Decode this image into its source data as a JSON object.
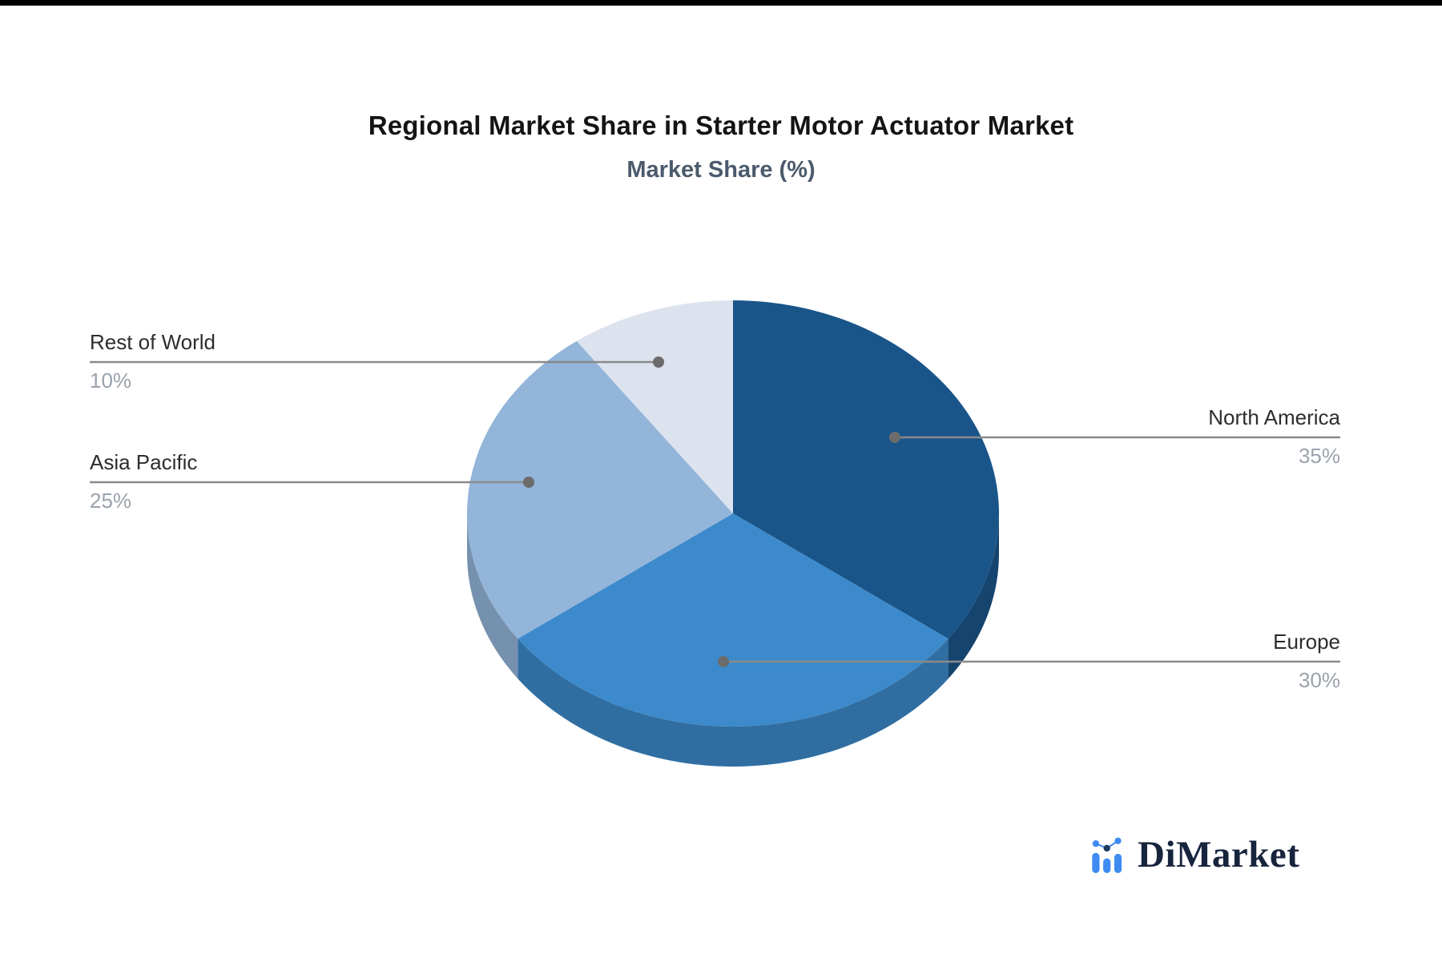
{
  "chart_data": {
    "type": "pie",
    "style": "3d",
    "title": "Regional Market Share in Starter Motor Actuator Market",
    "subtitle": "Market Share (%)",
    "start_angle_deg": 0,
    "direction": "clockwise",
    "legend_position": "callout-labels",
    "slices": [
      {
        "label": "North America",
        "value": 35,
        "display_value": "35%",
        "color": "#1A558A"
      },
      {
        "label": "Europe",
        "value": 30,
        "display_value": "30%",
        "color": "#3C8ACB"
      },
      {
        "label": "Asia Pacific",
        "value": 25,
        "display_value": "25%",
        "color": "#93B5DA"
      },
      {
        "label": "Rest of World",
        "value": 10,
        "display_value": "10%",
        "color": "#DCE3EE"
      }
    ],
    "callout_line_color": "#8A8A8A",
    "callout_dot_color": "#6C6C6C",
    "label_color": "#2D2D2D",
    "percent_color": "#9AA2AC"
  },
  "logo": {
    "text": "DiMarket",
    "icon": "bar-chart-logo-icon",
    "brand_blue": "#3E8BF2",
    "brand_navy": "#1D3A5F",
    "text_color": "#17243D"
  }
}
